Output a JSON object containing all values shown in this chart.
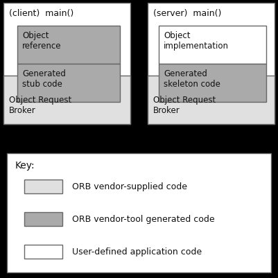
{
  "bg_color": "#000000",
  "light_gray": "#e0e0e0",
  "medium_gray": "#aaaaaa",
  "white": "#ffffff",
  "border_color": "#666666",
  "text_color": "#111111",
  "client_title": "(client)  main()",
  "server_title": "(server)  main()",
  "client_obj_ref": "Object\nreference",
  "client_gen_stub": "Generated\nstub code",
  "client_orb": "Object Request\nBroker",
  "server_obj_impl": "Object\nimplementation",
  "server_gen_skel": "Generated\nskeleton code",
  "server_orb": "Object Request\nBroker",
  "key_title": "Key:",
  "key_items": [
    {
      "label": "ORB vendor-supplied code",
      "color": "#e0e0e0"
    },
    {
      "label": "ORB vendor-tool generated code",
      "color": "#aaaaaa"
    },
    {
      "label": "User-defined application code",
      "color": "#ffffff"
    }
  ],
  "font_size_title": 9,
  "font_size_box": 8.5,
  "font_size_key_title": 10,
  "font_size_key": 9
}
